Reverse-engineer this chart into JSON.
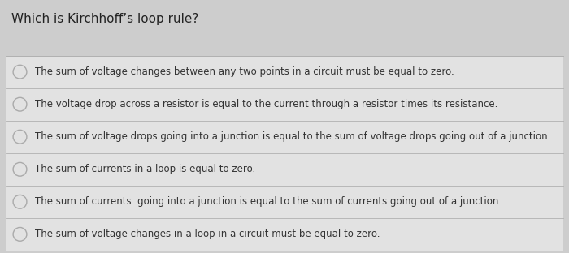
{
  "title": "Which is Kirchhoff’s loop rule?",
  "title_fontsize": 11,
  "title_color": "#222222",
  "background_color": "#cdcdcd",
  "option_background": "#e2e2e2",
  "separator_color": "#b0b0b0",
  "circle_color": "#aaaaaa",
  "text_color": "#333333",
  "options": [
    "The sum of voltage changes between any two points in a circuit must be equal to zero.",
    "The voltage drop across a resistor is equal to the current through a resistor times its resistance.",
    "The sum of voltage drops going into a junction is equal to the sum of voltage drops going out of a junction.",
    "The sum of currents in a loop is equal to zero.",
    "The sum of currents  going into a junction is equal to the sum of currents going out of a junction.",
    "The sum of voltage changes in a loop in a circuit must be equal to zero."
  ],
  "option_fontsize": 8.5,
  "figsize": [
    7.0,
    3.12
  ],
  "dpi": 100
}
